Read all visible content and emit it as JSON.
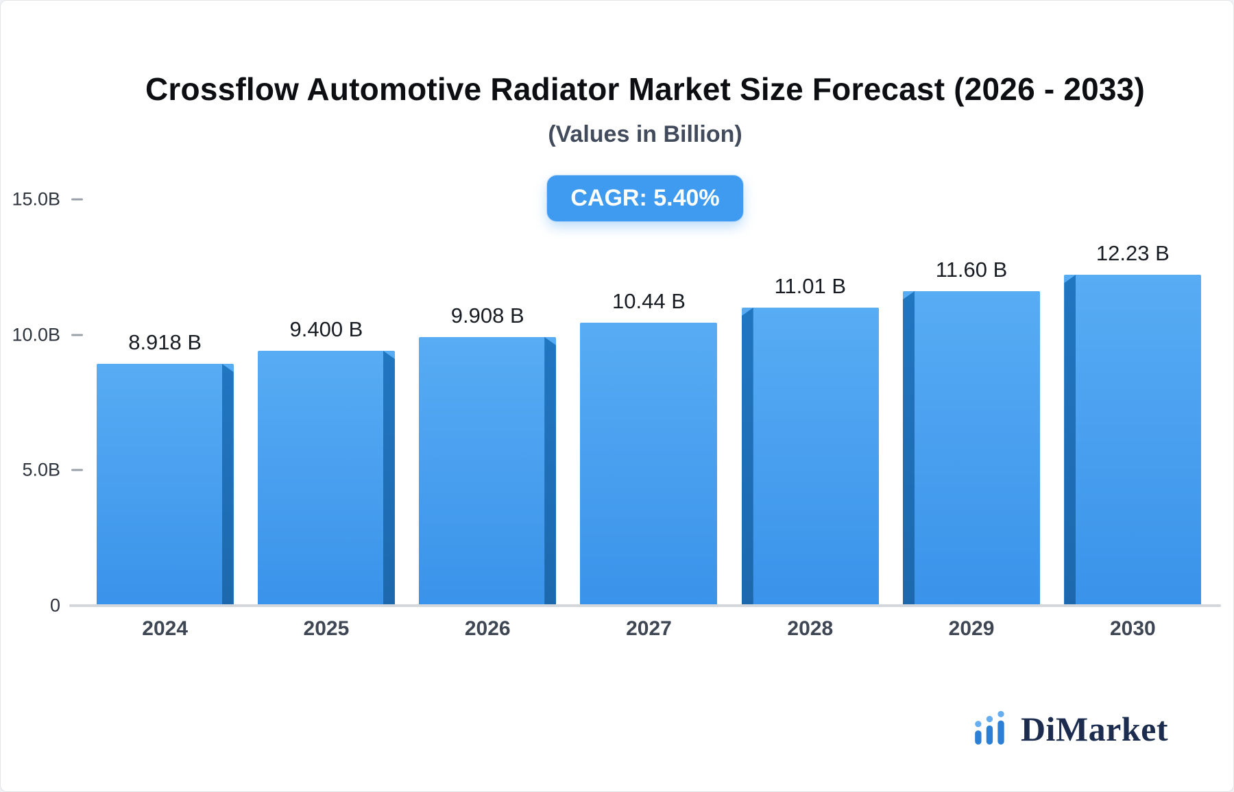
{
  "title": "Crossflow Automotive Radiator Market Size Forecast (2026 - 2033)",
  "subtitle": "(Values in Billion)",
  "badge": {
    "label": "CAGR: 5.40%"
  },
  "colors": {
    "accent": "#3f9bf0",
    "bar_top": "#58acf4",
    "bar_bottom": "#3a93ea",
    "bar_side_top": "#2176c1",
    "bar_side_bottom": "#1d68ad",
    "logo_navy": "#1b2c4f"
  },
  "chart_data": {
    "type": "bar",
    "categories": [
      "2024",
      "2025",
      "2026",
      "2027",
      "2028",
      "2029",
      "2030"
    ],
    "values": [
      8.918,
      9.4,
      9.908,
      10.44,
      11.01,
      11.6,
      12.23
    ],
    "value_labels": [
      "8.918 B",
      "9.400 B",
      "9.908 B",
      "10.44 B",
      "11.01 B",
      "11.60 B",
      "12.23 B"
    ],
    "side_3d": [
      "right",
      "right",
      "right",
      "none",
      "left",
      "left",
      "left"
    ],
    "y_ticks": [
      "15.0B",
      "10.0B",
      "5.0B",
      "0"
    ],
    "ylim": [
      0,
      15
    ],
    "title": "Crossflow Automotive Radiator Market Size Forecast (2026 - 2033)",
    "xlabel": "",
    "ylabel": "Values in Billion",
    "grid": false,
    "legend": "none"
  },
  "logo": {
    "text": "DiMarket",
    "icon": "bar-chart-logo-icon"
  }
}
